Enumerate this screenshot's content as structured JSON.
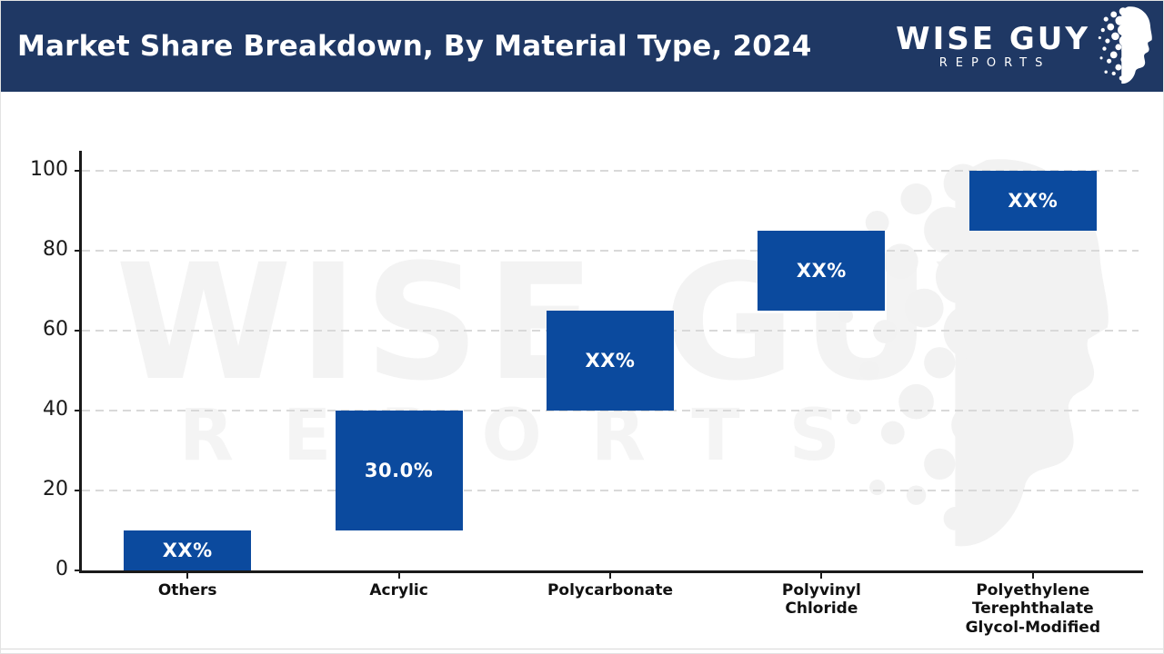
{
  "header": {
    "title": "Market Share Breakdown, By Material Type, 2024",
    "background_color": "#1f3864",
    "logo": {
      "primary": "WISE GUY",
      "secondary": "REPORTS"
    }
  },
  "watermark": {
    "primary": "WISE GUY",
    "secondary": "REPORTS"
  },
  "chart_data": {
    "type": "bar",
    "variant": "floating-range-waterfall",
    "title": "Market Share Breakdown, By Material Type, 2024",
    "categories": [
      "Others",
      "Acrylic",
      "Polycarbonate",
      "Polyvinyl Chloride",
      "Polyethylene Terephthalate Glycol-Modified"
    ],
    "bars": [
      {
        "category": "Others",
        "range": [
          0,
          10
        ],
        "label": "XX%"
      },
      {
        "category": "Acrylic",
        "range": [
          10,
          40
        ],
        "label": "30.0%"
      },
      {
        "category": "Polycarbonate",
        "range": [
          40,
          65
        ],
        "label": "XX%"
      },
      {
        "category": "Polyvinyl Chloride",
        "range": [
          65,
          85
        ],
        "label": "XX%"
      },
      {
        "category": "Polyethylene Terephthalate Glycol-Modified",
        "range": [
          85,
          100
        ],
        "label": "XX%"
      }
    ],
    "yticks": [
      0,
      20,
      40,
      60,
      80,
      100
    ],
    "ylim": [
      0,
      105
    ],
    "xlabel": "",
    "ylabel": "",
    "grid": "horizontal-dashed",
    "legend": "none",
    "bar_color": "#0b4a9e",
    "bar_label_color": "#ffffff"
  }
}
